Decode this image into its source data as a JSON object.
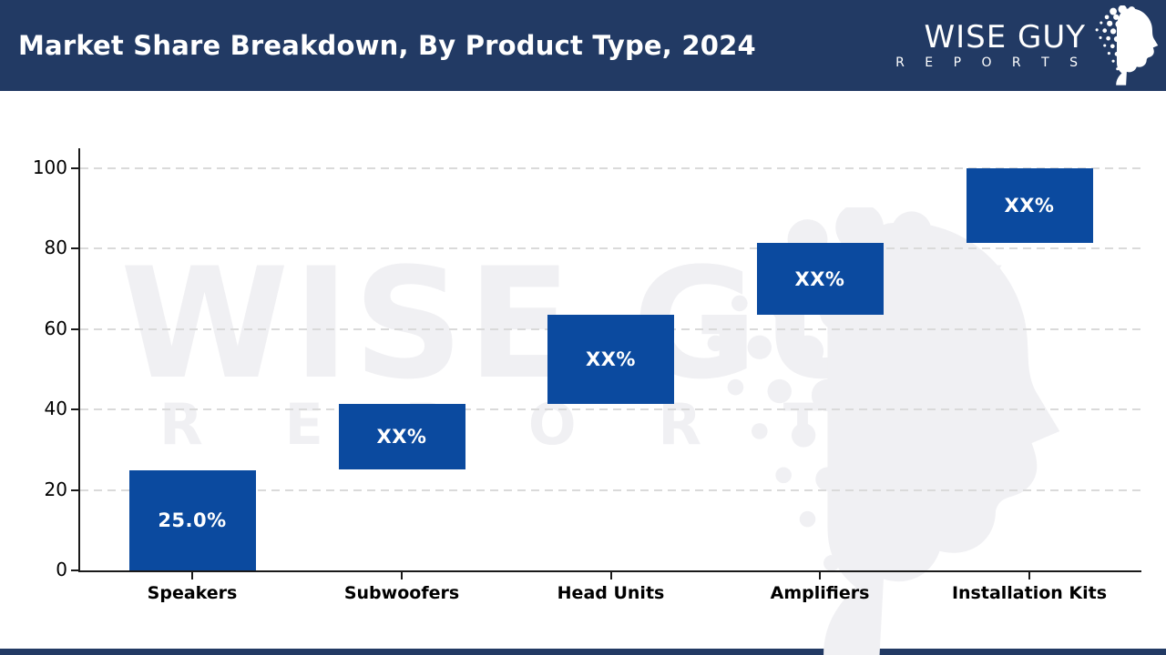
{
  "header": {
    "title": "Market Share Breakdown, By Product Type, 2024",
    "logo": {
      "line1": "WISE GUY",
      "line2": "R E P O R T S"
    }
  },
  "watermark": {
    "line1": "WISE GUY",
    "line2": "R E P O R T S"
  },
  "colors": {
    "header_bg": "#223A64",
    "footer_bg": "#223A64",
    "bar": "#0B4A9F",
    "bar_label_text": "#FFFFFF",
    "gridline": "#DADADA",
    "axis": "#1A1A1A",
    "watermark": "#F0F0F3"
  },
  "chart_data": {
    "type": "bar",
    "subtype": "waterfall",
    "title": "Market Share Breakdown, By Product Type, 2024",
    "categories": [
      "Speakers",
      "Subwoofers",
      "Head Units",
      "Amplifiers",
      "Installation Kits"
    ],
    "segments": [
      {
        "category": "Speakers",
        "start": 0,
        "end": 25,
        "label": "25.0%"
      },
      {
        "category": "Subwoofers",
        "start": 25,
        "end": 41.5,
        "label": "XX%"
      },
      {
        "category": "Head Units",
        "start": 41.5,
        "end": 63.5,
        "label": "XX%"
      },
      {
        "category": "Amplifiers",
        "start": 63.5,
        "end": 81.5,
        "label": "XX%"
      },
      {
        "category": "Installation Kits",
        "start": 81.5,
        "end": 100,
        "label": "XX%"
      }
    ],
    "yticks": [
      0,
      20,
      40,
      60,
      80,
      100
    ],
    "ylim": [
      0,
      105
    ],
    "xlabel": "",
    "ylabel": "",
    "grid": "horizontal-dashed",
    "legend": null,
    "bar_color": "#0B4A9F"
  }
}
